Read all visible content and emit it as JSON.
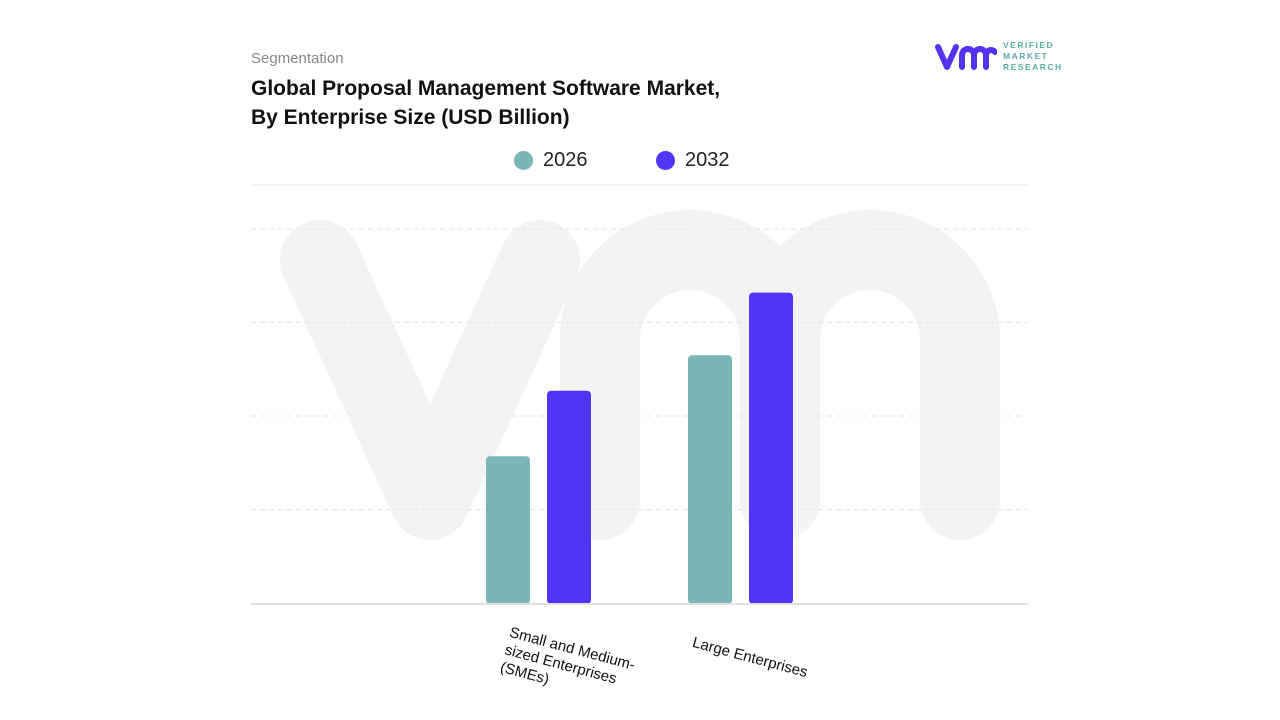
{
  "header": {
    "segment_label": "Segmentation",
    "title_line1": "Global Proposal Management Software Market,",
    "title_line2": "By Enterprise Size (USD Billion)"
  },
  "logo": {
    "line1": "VERIFIED",
    "line2": "MARKET",
    "line3": "RESEARCH",
    "mark": "vmr",
    "color": "#5533ee"
  },
  "chart_data": {
    "type": "bar",
    "title": "Global Proposal Management Software Market, By Enterprise Size (USD Billion)",
    "categories": [
      "Small and Medium-sized Enterprises (SMEs)",
      "Large Enterprises"
    ],
    "series": [
      {
        "name": "2026",
        "color": "#7ab5b8",
        "values": [
          1.57,
          2.65
        ]
      },
      {
        "name": "2032",
        "color": "#5035f5",
        "values": [
          2.27,
          3.32
        ]
      }
    ],
    "ylim": [
      0,
      4.5
    ],
    "grid": true,
    "legend": "top-center",
    "xlabel": "",
    "ylabel": ""
  }
}
